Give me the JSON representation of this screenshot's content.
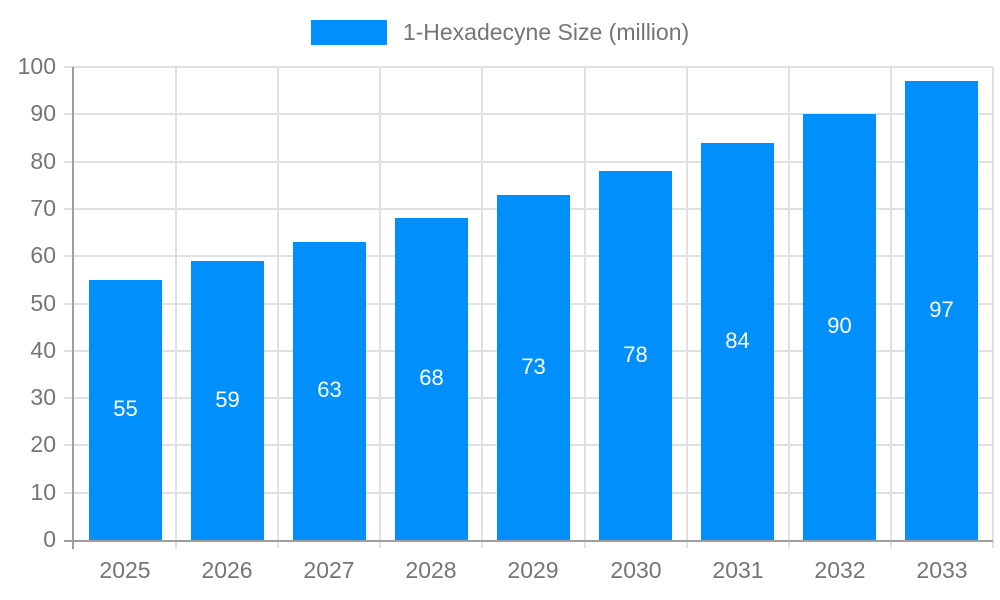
{
  "chart_data": {
    "type": "bar",
    "title": "1-Hexadecyne Size (million)",
    "categories": [
      "2025",
      "2026",
      "2027",
      "2028",
      "2029",
      "2030",
      "2031",
      "2032",
      "2033"
    ],
    "values": [
      55,
      59,
      63,
      68,
      73,
      78,
      84,
      90,
      97
    ],
    "series": [
      {
        "name": "1-Hexadecyne Size (million)",
        "values": [
          55,
          59,
          63,
          68,
          73,
          78,
          84,
          90,
          97
        ]
      }
    ],
    "xlabel": "",
    "ylabel": "",
    "ylim": [
      0,
      100
    ],
    "y_ticks": [
      0,
      10,
      20,
      30,
      40,
      50,
      60,
      70,
      80,
      90,
      100
    ],
    "grid": true,
    "legend_position": "top",
    "value_labels": "inside-center",
    "colors": {
      "bar": "#008FFB",
      "value_label": "#ffffff",
      "axis_text": "#757575",
      "grid_line": "#e0e0e0",
      "axis_line": "#9e9e9e",
      "background": "#ffffff"
    }
  },
  "legend": {
    "label": "1-Hexadecyne Size (million)",
    "swatch_color": "#008FFB"
  }
}
